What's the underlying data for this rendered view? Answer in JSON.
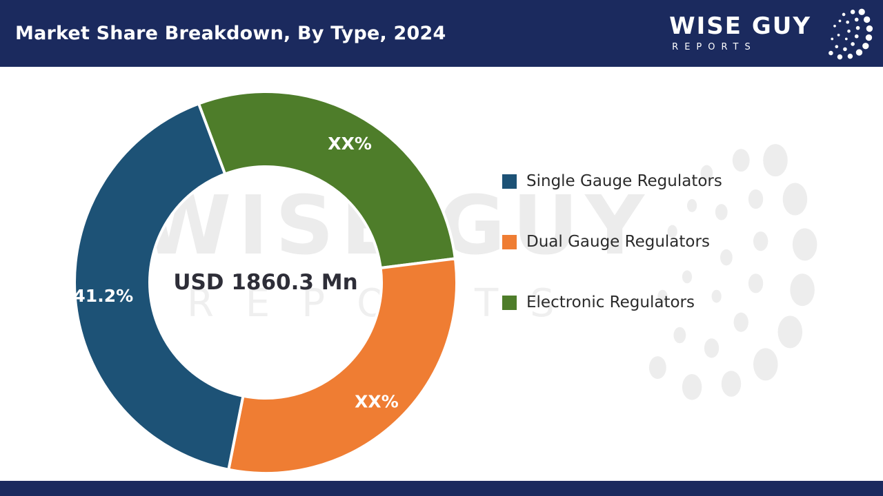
{
  "header": {
    "title": "Market Share Breakdown, By Type, 2024",
    "bg_color": "#1b2a5e",
    "logo_line1": "WISE GUY",
    "logo_line2": "REPORTS"
  },
  "footer": {
    "bg_color": "#1b2a5e"
  },
  "watermark": {
    "line1": "WISE GUY",
    "line2": "REPORTS"
  },
  "chart_data": {
    "type": "pie",
    "variant": "donut",
    "title": "Market Share Breakdown, By Type, 2024",
    "center_label": "USD 1860.3 Mn",
    "start_angle_deg": -20.5,
    "draw_order": [
      2,
      1,
      0
    ],
    "segments": [
      {
        "name": "Single Gauge Regulators",
        "value": 41.2,
        "display_label": "41.2%",
        "color": "#1d5276"
      },
      {
        "name": "Dual Gauge Regulators",
        "value": 30.1,
        "display_label": "XX%",
        "color": "#ef7d33"
      },
      {
        "name": "Electronic Regulators",
        "value": 28.7,
        "display_label": "XX%",
        "color": "#4e7d2a"
      }
    ],
    "legend_position": "right"
  }
}
